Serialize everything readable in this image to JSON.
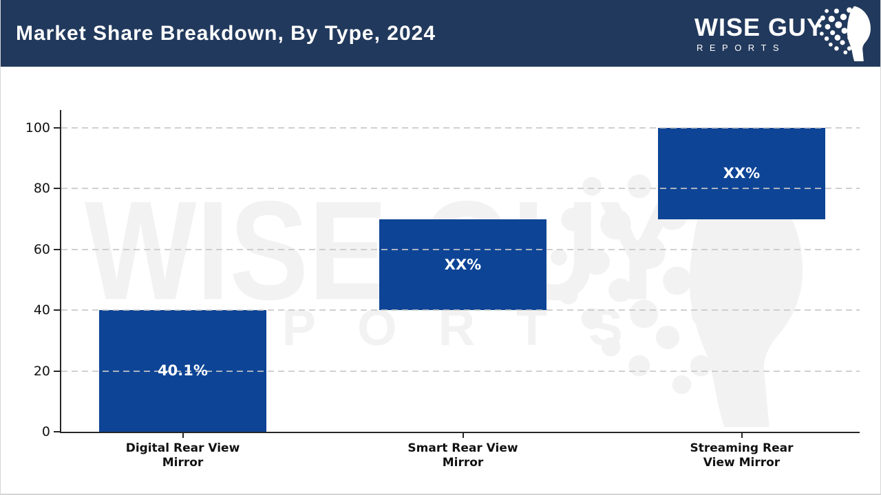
{
  "page": {
    "bg": "#ffffff",
    "border_color": "#d6d6d6"
  },
  "header": {
    "bg": "#21395c",
    "title": "Market Share Breakdown, By Type, 2024",
    "logo": {
      "wordmark": "WISE GUY",
      "sub": "REPORTS"
    }
  },
  "watermark": {
    "wordmark": "WISE GUY",
    "sub": "REPORTS"
  },
  "chart_data": {
    "type": "bar",
    "variant": "floating-stacked-breakdown",
    "title": "Market Share Breakdown, By Type, 2024",
    "categories": [
      "Digital Rear View Mirror",
      "Smart Rear View Mirror",
      "Streaming Rear View Mirror"
    ],
    "category_label_lines": [
      [
        "Digital Rear View",
        "Mirror"
      ],
      [
        "Smart Rear View",
        "Mirror"
      ],
      [
        "Streaming Rear",
        "View Mirror"
      ]
    ],
    "segments": [
      {
        "category": "Digital Rear View Mirror",
        "from": 0,
        "to": 40.1,
        "label": "40.1%"
      },
      {
        "category": "Smart Rear View Mirror",
        "from": 40,
        "to": 70,
        "label": "XX%"
      },
      {
        "category": "Streaming Rear View Mirror",
        "from": 70,
        "to": 100,
        "label": "XX%"
      }
    ],
    "ylim": [
      0,
      100
    ],
    "yticks": [
      0,
      20,
      40,
      60,
      80,
      100
    ],
    "grid": {
      "style": "dashed",
      "color": "#d8d8d8"
    },
    "bar_color": "#0d4496",
    "bar_label_color": "#ffffff",
    "axis_color": "#262626",
    "xlabel": "",
    "ylabel": "",
    "legend": "none"
  }
}
